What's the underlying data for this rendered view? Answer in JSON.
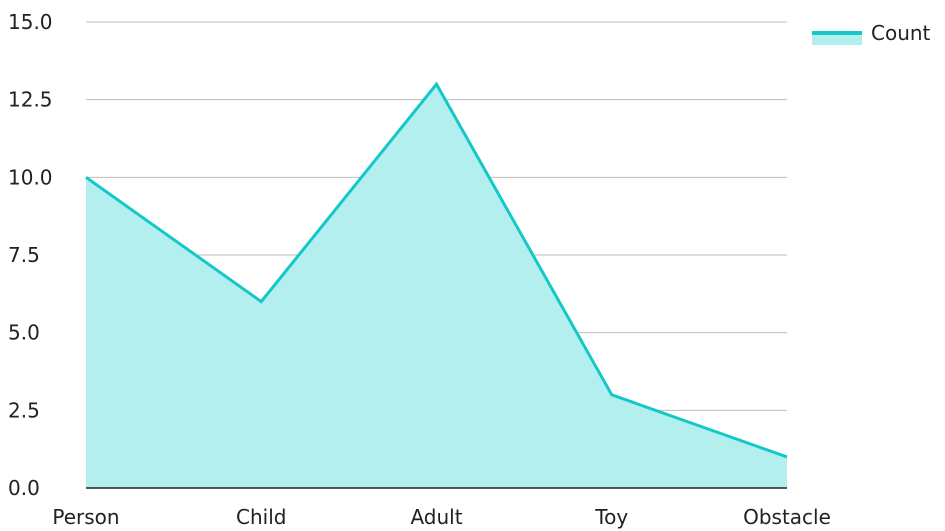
{
  "chart_data": {
    "type": "area",
    "title": "",
    "xlabel": "",
    "ylabel": "",
    "categories": [
      "Person",
      "Child",
      "Adult",
      "Toy",
      "Obstacle"
    ],
    "series": [
      {
        "name": "Count",
        "values": [
          10,
          6,
          13,
          3,
          1
        ]
      }
    ],
    "ylim": [
      0,
      15
    ],
    "yticks": [
      "0.0",
      "2.5",
      "5.0",
      "7.5",
      "10.0",
      "12.5",
      "15.0"
    ],
    "grid": true,
    "legend_position": "top-right",
    "colors": {
      "line": "#14c8c8",
      "fill": "#b2efee",
      "axis": "#222222",
      "grid": "#bdbdbd"
    }
  }
}
